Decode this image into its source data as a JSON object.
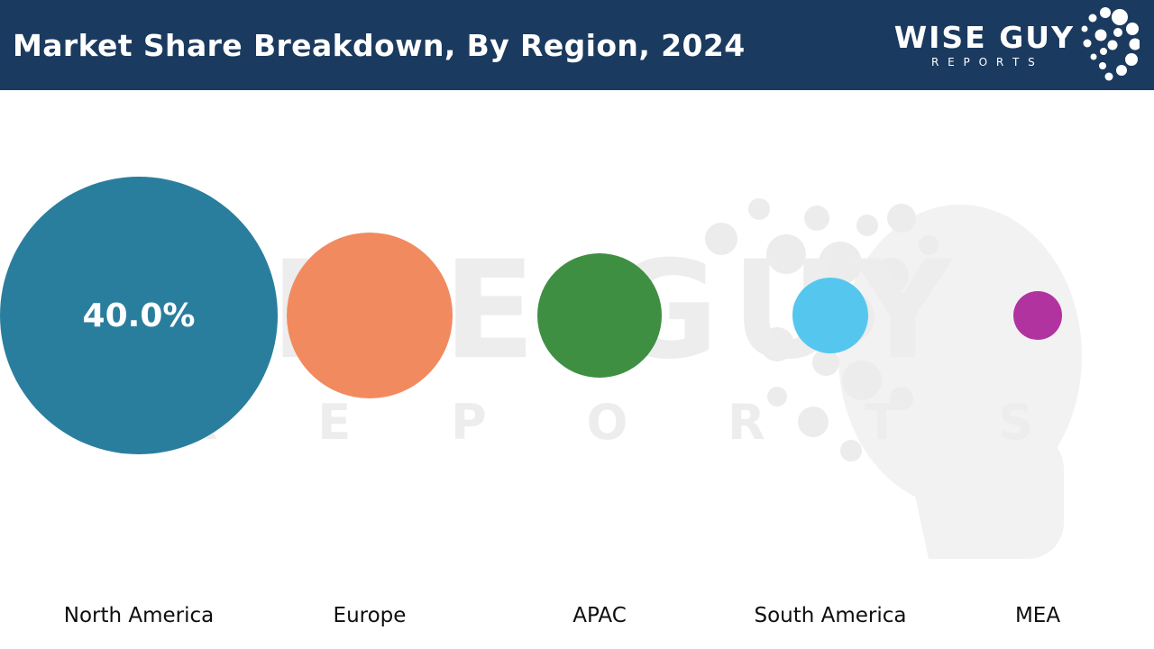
{
  "header": {
    "title": "Market Share Breakdown, By Region, 2024",
    "bg_color": "#1b3a5f",
    "logo_line1": "WISE GUY",
    "logo_line2": "R E P O R T S"
  },
  "watermark": {
    "line1": "WISE GUY",
    "line2": "R E P O R T S"
  },
  "chart_data": {
    "type": "bubble",
    "title": "Market Share Breakdown, By Region, 2024",
    "categories": [
      "North America",
      "Europe",
      "APAC",
      "South America",
      "MEA"
    ],
    "values": [
      40.0,
      24.0,
      18.0,
      11.0,
      7.0
    ],
    "data_labels": [
      "40.0%",
      "",
      "",
      "",
      ""
    ],
    "colors": [
      "#2a7e9d",
      "#f28a5f",
      "#3f8f43",
      "#55c7ee",
      "#b133a0"
    ],
    "unit": "%",
    "legend_position": "none",
    "grid": "off",
    "note_only_labeled_value": "North America 40.0%"
  }
}
